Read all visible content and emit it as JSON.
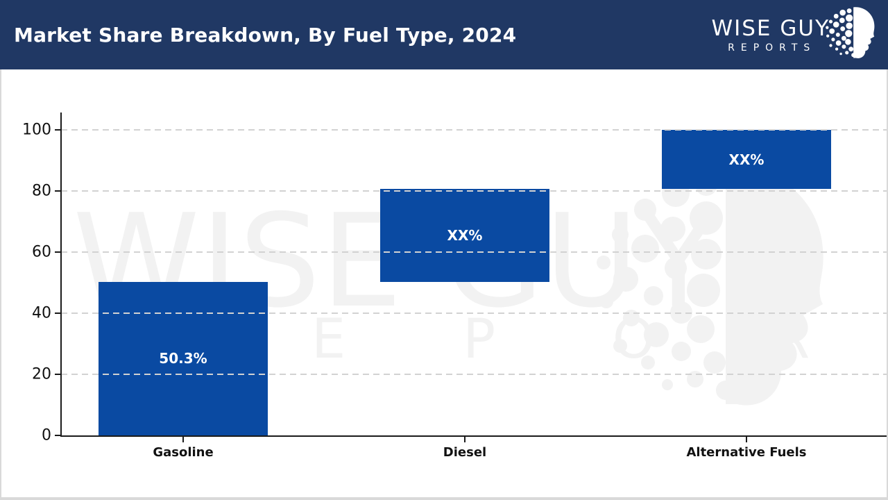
{
  "header": {
    "title": "Market Share Breakdown, By Fuel Type, 2024",
    "bg_color": "#203864",
    "logo": {
      "primary": "WISE GUY",
      "secondary": "REPORTS"
    }
  },
  "watermark": {
    "primary": "WISE GUY",
    "secondary": "R E P O R T S"
  },
  "chart_data": {
    "type": "bar",
    "subtype": "floating-segment-market-share",
    "title": "Market Share Breakdown, By Fuel Type, 2024",
    "categories": [
      "Gasoline",
      "Diesel",
      "Alternative Fuels"
    ],
    "segments": [
      {
        "category": "Gasoline",
        "start": 0,
        "end": 50.3,
        "label": "50.3%"
      },
      {
        "category": "Diesel",
        "start": 50.3,
        "end": 80.6,
        "label": "XX%"
      },
      {
        "category": "Alternative Fuels",
        "start": 80.6,
        "end": 100,
        "label": "XX%"
      }
    ],
    "yticks": [
      0,
      20,
      40,
      60,
      80,
      100
    ],
    "ylim": [
      0,
      105.5
    ],
    "xlabel": "",
    "ylabel": "",
    "bar_color": "#0a4aa2",
    "bar_label_color": "#ffffff",
    "grid": {
      "axis": "y",
      "style": "dashed",
      "color": "#d2d2d2",
      "drawn_above_bars": true
    },
    "legend": null
  }
}
